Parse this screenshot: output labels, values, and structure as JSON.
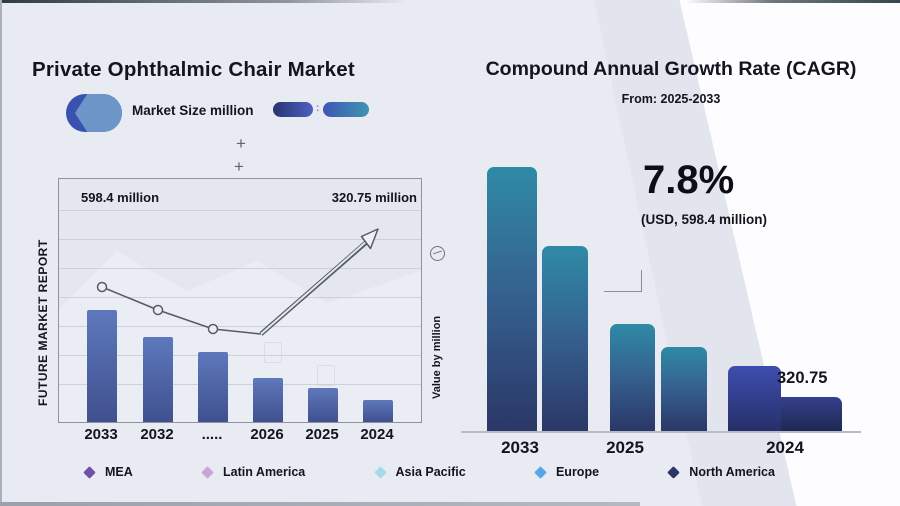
{
  "header": {
    "left_title": "Private Ophthalmic Chair Market",
    "market_size_label": "Market Size million",
    "pill_separator": ":",
    "right_title": "Compound Annual Growth Rate (CAGR)",
    "right_subtitle": "From: 2025-2033"
  },
  "left_chart": {
    "side_watermark": "FUTURE MARKET REPORT"
  },
  "right_chart": {
    "ylabel": "Value by million"
  },
  "legend": {
    "items": [
      {
        "label": "MEA",
        "color": "#6f51a8"
      },
      {
        "label": "Latin America",
        "color": "#cda3d8"
      },
      {
        "label": "Asia Pacific",
        "color": "#a9d9e8"
      },
      {
        "label": "Europe",
        "color": "#55a7e8"
      },
      {
        "label": "North America",
        "color": "#2b3568"
      }
    ]
  },
  "colors": {
    "left_bar_top": "#5d79bb",
    "left_bar_bottom": "#40508f",
    "right_bar_teal_top": "#2f8aa6",
    "right_bar_navy_bottom": "#2b3767",
    "background": "#e9ebf2",
    "text": "#14141f"
  },
  "chart_data": [
    {
      "type": "bar",
      "title": "Market Size million",
      "categories": [
        "2033",
        "2032",
        ".....",
        "2026",
        "2025",
        "2024"
      ],
      "values_relative_pct": [
        46,
        35,
        29,
        18,
        14,
        9
      ],
      "annotations": [
        "598.4 million",
        "320.75 million"
      ],
      "trend_line_marker_y_pct": [
        56,
        46,
        38
      ],
      "xlabel": "",
      "ylabel": "",
      "grid": "horizontal",
      "legend_position": "none"
    },
    {
      "type": "bar",
      "title": "Compound Annual Growth Rate (CAGR)",
      "subtitle": "From: 2025-2033",
      "categories": [
        "2033",
        "2025",
        "2024"
      ],
      "series": [
        {
          "name": "series_1",
          "values_relative_pct": [
            94,
            38,
            23
          ]
        },
        {
          "name": "series_2",
          "values_relative_pct": [
            66,
            30,
            12
          ]
        }
      ],
      "cagr_value": "7.8%",
      "cagr_caption": "(USD, 598.4 million)",
      "value_label_2024": "320.75",
      "xlabel": "",
      "ylabel": "Value by million",
      "grid": "off",
      "legend_position": "bottom"
    }
  ]
}
